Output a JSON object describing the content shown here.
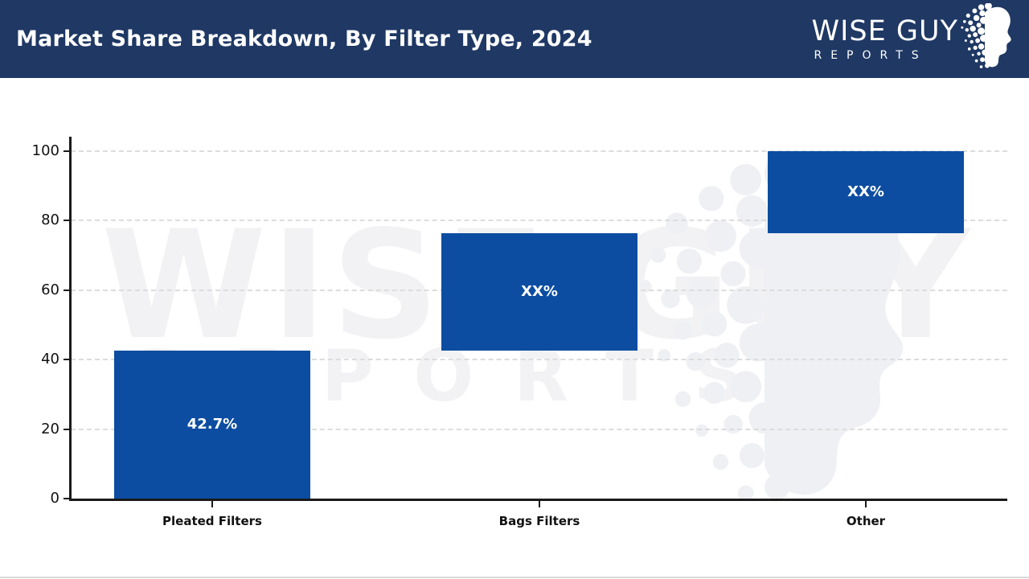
{
  "colors": {
    "header_bg": "#1f3864",
    "bar": "#0c4da1",
    "grid": "#dcdcdc",
    "axis": "#1a1a1a",
    "watermark": "#f2f2f4",
    "bar_label": "#ffffff"
  },
  "header": {
    "title": "Market Share Breakdown, By Filter Type, 2024",
    "logo": {
      "line1": "WISE GUY",
      "line2": "REPORTS"
    }
  },
  "watermark": {
    "line1": "WISE GUY",
    "line2": "REPORTS"
  },
  "chart_data": {
    "type": "bar",
    "variant": "waterfall",
    "title": "Market Share Breakdown, By Filter Type, 2024",
    "categories": [
      "Pleated Filters",
      "Bags Filters",
      "Other"
    ],
    "segments": [
      {
        "category": "Pleated Filters",
        "from": 0,
        "to": 42.7,
        "label": "42.7%"
      },
      {
        "category": "Bags Filters",
        "from": 42.7,
        "to": 76.4,
        "label": "XX%"
      },
      {
        "category": "Other",
        "from": 76.4,
        "to": 100,
        "label": "XX%"
      }
    ],
    "yticks": [
      0,
      20,
      40,
      60,
      80,
      100
    ],
    "ylim": [
      0,
      104
    ],
    "xlabel": "",
    "ylabel": "",
    "grid": "dashed-horizontal",
    "legend": null,
    "bar_color": "#0c4da1",
    "bar_label_color": "#ffffff"
  }
}
